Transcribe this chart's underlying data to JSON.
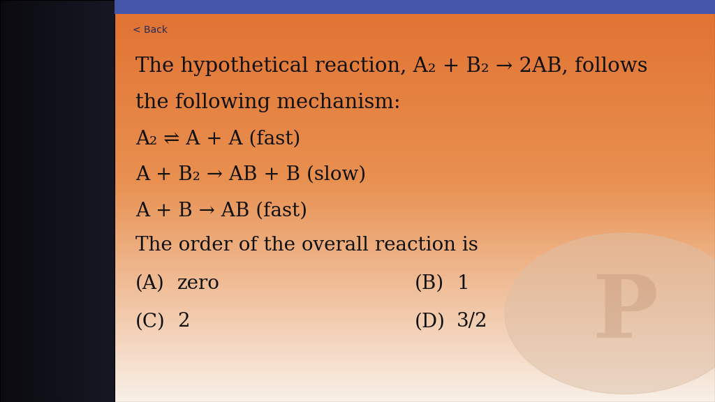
{
  "back_text": "< Back",
  "line1": "The hypothetical reaction, A₂ + B₂ → 2AB, follows",
  "line2": "the following mechanism:",
  "mechanism1": "A₂ ⇌ A + A (fast)",
  "mechanism2": "A + B₂ → AB + B (slow)",
  "mechanism3": "A + B → AB (fast)",
  "question": "The order of the overall reaction is",
  "optA_label": "(A)",
  "optA_val": "zero",
  "optB_label": "(B)",
  "optB_val": "1",
  "optC_label": "(C)",
  "optC_val": "2",
  "optD_label": "(D)",
  "optD_val": "3/2",
  "bg_color_top": "#e07030",
  "bg_color_mid": "#e8904a",
  "bg_color_bottom": "#f5ede0",
  "left_dark_color": "#0a0a12",
  "text_color": "#111111",
  "back_text_color": "#2a2a5a",
  "title_bar_color": "#4455aa",
  "figsize": [
    10.24,
    5.76
  ],
  "dpi": 100
}
